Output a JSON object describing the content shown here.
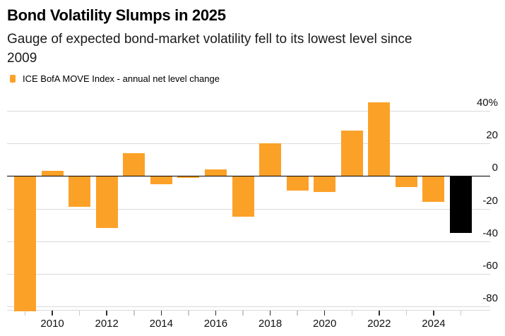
{
  "header": {
    "title": "Bond Volatility Slumps in 2025",
    "subtitle_line1": "Gauge of expected bond-market volatility fell to its lowest level since",
    "subtitle_line2": "2009"
  },
  "legend": {
    "label": "ICE BofA MOVE Index - annual net level change",
    "swatch_color": "#FCA128"
  },
  "chart_data": {
    "type": "bar",
    "title": "Bond Volatility Slumps in 2025",
    "subtitle": "Gauge of expected bond-market volatility fell to its lowest level since 2009",
    "series_name": "ICE BofA MOVE Index - annual net level change",
    "categories": [
      "2009",
      "2010",
      "2011",
      "2012",
      "2013",
      "2014",
      "2015",
      "2016",
      "2017",
      "2018",
      "2019",
      "2020",
      "2021",
      "2022",
      "2023",
      "2024",
      "2025"
    ],
    "values": [
      -83,
      3,
      -19,
      -32,
      14,
      -5,
      -1,
      4,
      -25,
      20,
      -9,
      -10,
      28,
      45,
      -7,
      -16,
      -35
    ],
    "unit": "%",
    "bar_color": "#FCA128",
    "highlight": {
      "category": "2025",
      "color": "#000000"
    },
    "y_ticks": [
      {
        "label": "40%",
        "value": 40
      },
      {
        "label": "20",
        "value": 20
      },
      {
        "label": "0",
        "value": 0
      },
      {
        "label": "-20",
        "value": -20
      },
      {
        "label": "-40",
        "value": -40
      },
      {
        "label": "-60",
        "value": -60
      },
      {
        "label": "-80",
        "value": -80
      }
    ],
    "x_tick_labels": [
      "2010",
      "2012",
      "2014",
      "2016",
      "2018",
      "2020",
      "2022",
      "2024"
    ],
    "ylim": [
      -84,
      46
    ],
    "grid": true,
    "grid_color": "#d9d9d9",
    "zero_line_color": "#000000",
    "axis_tick_color_major": "#2e2e2e",
    "axis_tick_color_minor": "#c9c9c9",
    "legend_position": "top-left",
    "y_axis_side": "right"
  }
}
